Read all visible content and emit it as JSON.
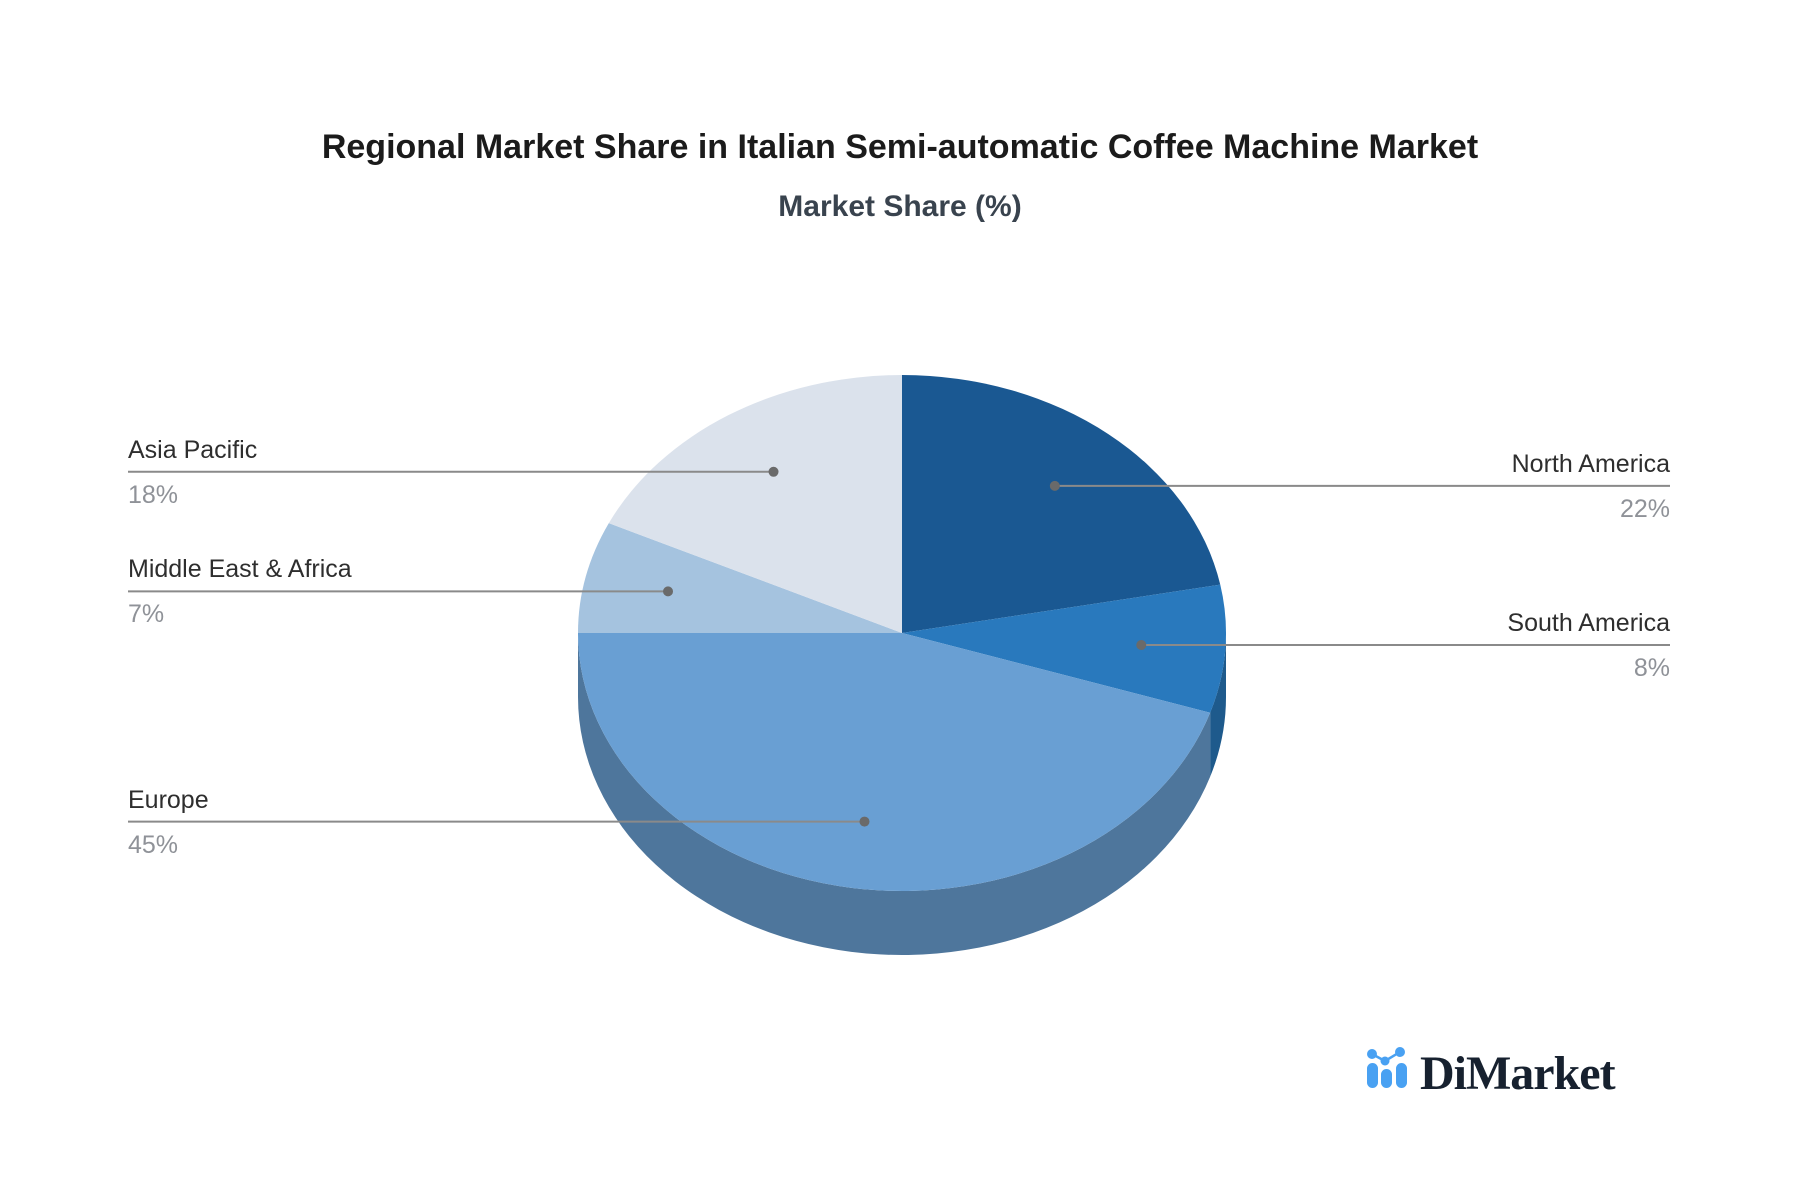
{
  "chart_data": {
    "type": "pie",
    "style": "3d",
    "title": "Regional Market Share in Italian Semi-automatic Coffee Machine Market",
    "subtitle": "Market Share (%)",
    "unit": "%",
    "start_angle": "12 o'clock",
    "direction": "clockwise",
    "legend_position": "leader-line labels (left and right of pie)",
    "slices": [
      {
        "label": "North America",
        "value": 22,
        "display": "22%",
        "color": "#1A5892"
      },
      {
        "label": "South America",
        "value": 8,
        "display": "8%",
        "color": "#2979BD"
      },
      {
        "label": "Europe",
        "value": 45,
        "display": "45%",
        "color": "#699FD3"
      },
      {
        "label": "Middle East & Africa",
        "value": 7,
        "display": "7%",
        "color": "#A5C3DF"
      },
      {
        "label": "Asia Pacific",
        "value": 18,
        "display": "18%",
        "color": "#DBE2EC"
      }
    ],
    "colors": {
      "label_text": "#2E2E2E",
      "value_text": "#8F9298",
      "leader_line": "#8A8A8A",
      "leader_dot": "#6A6A6A"
    }
  },
  "branding": {
    "logo_text": "DiMarket",
    "logo_icon": "bar-line-chart-icon",
    "logo_text_color": "#17212F",
    "logo_icon_color": "#49A1F2"
  }
}
